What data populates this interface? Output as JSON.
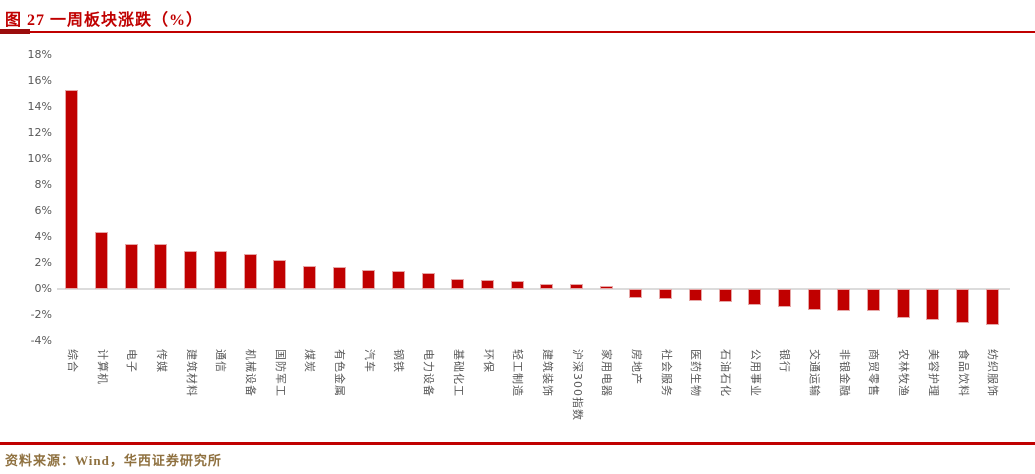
{
  "figure": {
    "title": "图 27 一周板块涨跌（%）",
    "source_note": "资料来源：Wind，华西证券研究所"
  },
  "colors": {
    "title_red": "#C00000",
    "rule_red": "#C00000",
    "rule_dark_red": "#9B0D0D",
    "bar_fill": "#C00000",
    "bar_edge": "#E6A6A6",
    "axis_text_gray": "#595959",
    "baseline_gray": "#DCDCDC",
    "source_text_brown": "#8F7140"
  },
  "chart_data": {
    "type": "bar",
    "title": "图 27 一周板块涨跌（%）",
    "categories": [
      "综合",
      "计算机",
      "电子",
      "传媒",
      "建筑材料",
      "通信",
      "机械设备",
      "国防军工",
      "煤炭",
      "有色金属",
      "汽车",
      "钢铁",
      "电力设备",
      "基础化工",
      "环保",
      "轻工制造",
      "建筑装饰",
      "沪深300指数",
      "家用电器",
      "房地产",
      "社会服务",
      "医药生物",
      "石油石化",
      "公用事业",
      "银行",
      "交通运输",
      "非银金融",
      "商贸零售",
      "农林牧渔",
      "美容护理",
      "食品饮料",
      "纺织服饰"
    ],
    "values": [
      15.3,
      4.4,
      3.5,
      3.5,
      2.9,
      2.9,
      2.7,
      2.2,
      1.8,
      1.7,
      1.5,
      1.4,
      1.2,
      0.8,
      0.7,
      0.6,
      0.4,
      0.4,
      0.2,
      -0.7,
      -0.8,
      -0.9,
      -1.0,
      -1.2,
      -1.4,
      -1.6,
      -1.7,
      -1.7,
      -2.2,
      -2.4,
      -2.6,
      -2.8
    ],
    "xlabel": "",
    "ylabel": "",
    "ylim": [
      -4,
      18
    ],
    "ytick_values": [
      18,
      16,
      14,
      12,
      10,
      8,
      6,
      4,
      2,
      0,
      -2,
      -4
    ],
    "ytick_labels": [
      "18%",
      "16%",
      "14%",
      "12%",
      "10%",
      "8%",
      "6%",
      "4%",
      "2%",
      "0%",
      "-2%",
      "-4%"
    ],
    "grid": false,
    "legend": "none",
    "bar_color": "#C00000",
    "x_labels_rotation_deg": 90
  }
}
